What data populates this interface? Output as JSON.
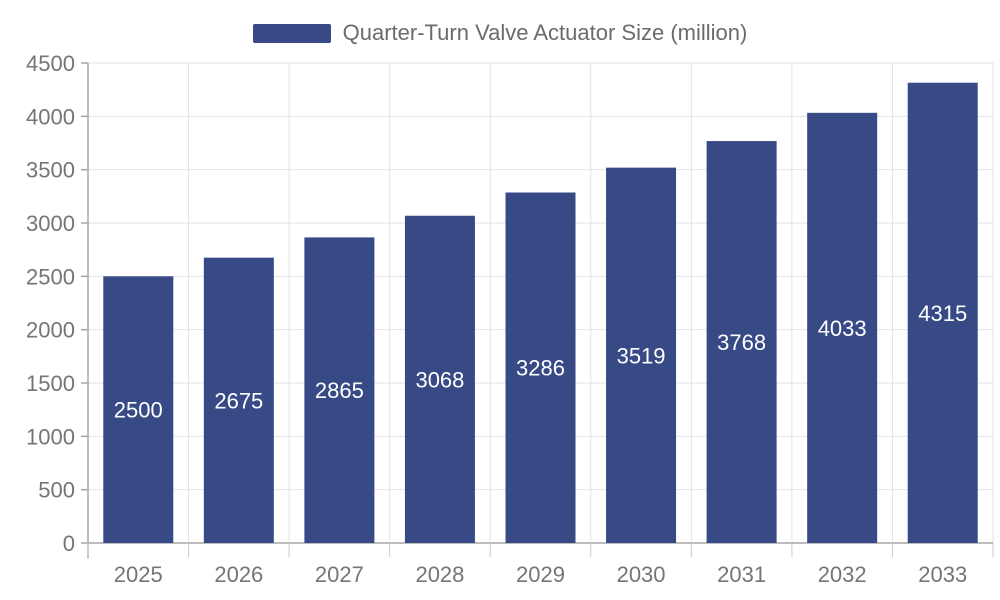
{
  "chart_data": {
    "type": "bar",
    "title": "",
    "legend": "Quarter-Turn Valve Actuator Size (million)",
    "legend_position": "top",
    "series_name": "Quarter-Turn Valve Actuator Size (million)",
    "categories": [
      "2025",
      "2026",
      "2027",
      "2028",
      "2029",
      "2030",
      "2031",
      "2032",
      "2033"
    ],
    "values": [
      2500,
      2675,
      2865,
      3068,
      3286,
      3519,
      3768,
      4033,
      4315
    ],
    "value_labels": [
      "2500",
      "2675",
      "2865",
      "3068",
      "3286",
      "3519",
      "3768",
      "4033",
      "4315"
    ],
    "xlabel": "",
    "ylabel": "",
    "ylim": [
      0,
      4500
    ],
    "ytick_step": 500,
    "ytick_labels": [
      "0",
      "500",
      "1000",
      "1500",
      "2000",
      "2500",
      "3000",
      "3500",
      "4000",
      "4500"
    ],
    "grid": true,
    "colors": {
      "bar": "#374A86",
      "value_label": "#FFFFFF",
      "axis_line": "#A6A6A6",
      "x_tick": "#C9C9C9",
      "gridline": "#E3E3E3",
      "axis_label": "#757575",
      "legend_text": "#6B6B6B"
    }
  }
}
